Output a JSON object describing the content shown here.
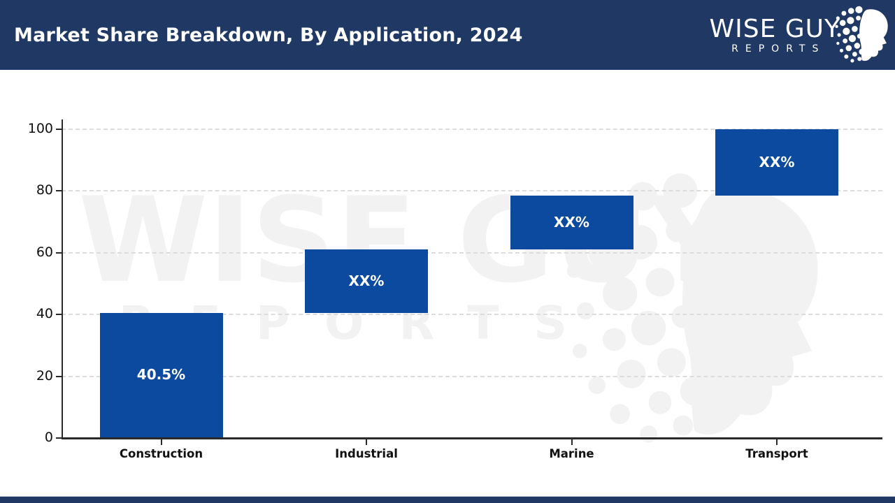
{
  "header": {
    "title": "Market Share Breakdown, By Application, 2024",
    "bg_color": "#1f3864",
    "logo": {
      "line1": "WISE GUY",
      "line2": "REPORTS"
    }
  },
  "watermark": {
    "line1": "WISE GUY",
    "line2": "REPORTS"
  },
  "chart_data": {
    "type": "bar",
    "subtype": "waterfall",
    "title": "Market Share Breakdown, By Application, 2024",
    "categories": [
      "Construction",
      "Industrial",
      "Marine",
      "Transport"
    ],
    "segments": [
      {
        "category": "Construction",
        "start": 0,
        "end": 40.5,
        "label": "40.5%"
      },
      {
        "category": "Industrial",
        "start": 40.5,
        "end": 61,
        "label": "XX%"
      },
      {
        "category": "Marine",
        "start": 61,
        "end": 78.5,
        "label": "XX%"
      },
      {
        "category": "Transport",
        "start": 78.5,
        "end": 100,
        "label": "XX%"
      }
    ],
    "ylim": [
      0,
      100
    ],
    "yticks": [
      0,
      20,
      40,
      60,
      80,
      100
    ],
    "xlabel": "",
    "ylabel": "",
    "grid": "horizontal-dashed",
    "legend": "none",
    "bar_color": "#0b4a9e",
    "bar_label_color": "#ffffff",
    "grid_color": "#dcdcdc",
    "axis_color": "#2a2a2a"
  },
  "footer": {
    "bg_color": "#1f3864"
  }
}
